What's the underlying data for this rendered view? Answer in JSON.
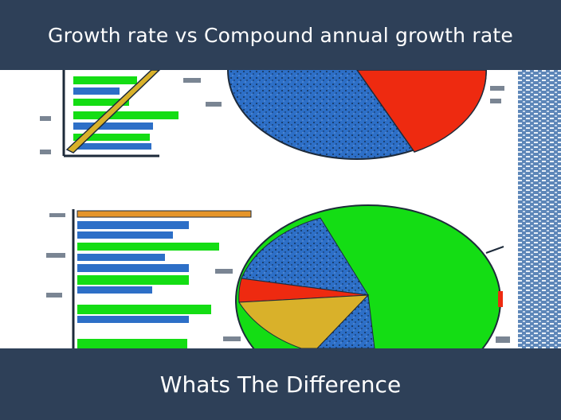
{
  "header": {
    "title": "Growth rate vs Compound annual growth rate"
  },
  "footer": {
    "subtitle": "Whats The Difference"
  },
  "colors": {
    "band": "#2e4058",
    "paper": "#ffffff",
    "blue": "#2d6fc7",
    "green": "#14dd14",
    "red": "#ee2a10",
    "yellow": "#d9b12a",
    "orange": "#e5952a",
    "dark": "#1d2a3a"
  },
  "illustration": {
    "icon": "hand-drawn-charts-icon"
  }
}
